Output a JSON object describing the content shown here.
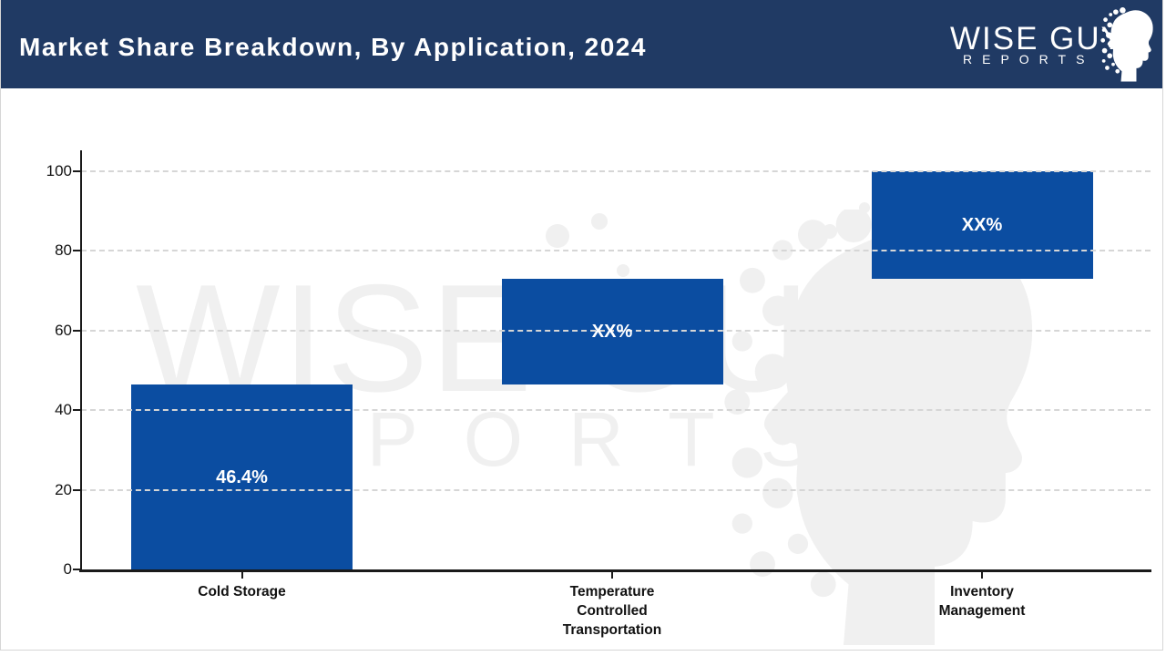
{
  "page": {
    "background": "#ffffff",
    "frame_border_color": "#d6d6d6"
  },
  "header": {
    "title": "Market Share Breakdown, By Application, 2024",
    "background": "#203a64",
    "text_color": "#ffffff",
    "logo": {
      "name": "Wise Guy Reports",
      "line1": "WISE GUY",
      "line2": "REPORTS",
      "face_icon": "dotted-face-profile"
    }
  },
  "watermark": {
    "line1": "WISE GUY",
    "line2": "REPORTS",
    "color": "#f0f0f0"
  },
  "chart_data": {
    "type": "bar",
    "variant": "stacked-waterfall",
    "title": "Market Share Breakdown, By Application, 2024",
    "categories": [
      "Cold Storage",
      "Temperature Controlled Transportation",
      "Inventory Management"
    ],
    "category_label_lines": [
      [
        "Cold Storage"
      ],
      [
        "Temperature",
        "Controlled",
        "Transportation"
      ],
      [
        "Inventory",
        "Management"
      ]
    ],
    "series": [
      {
        "name": "Market share (%)",
        "segments": [
          {
            "category": "Cold Storage",
            "start": 0,
            "end": 46.4,
            "value": 46.4,
            "label": "46.4%"
          },
          {
            "category": "Temperature Controlled Transportation",
            "start": 46.4,
            "end": 73.0,
            "value": 26.6,
            "label": "XX%"
          },
          {
            "category": "Inventory Management",
            "start": 73.0,
            "end": 100.0,
            "value": 27.0,
            "label": "XX%"
          }
        ]
      }
    ],
    "ylim": [
      0,
      100
    ],
    "yticks": [
      0,
      20,
      40,
      60,
      80,
      100
    ],
    "xlabel": "",
    "ylabel": "",
    "grid": {
      "horizontal": true,
      "style": "dashed",
      "color": "#d6d6d6",
      "above_bars": true
    },
    "legend": "none",
    "bar_color": "#0b4da1",
    "bar_label_color": "#ffffff",
    "axis_color": "#1a1a1a"
  }
}
